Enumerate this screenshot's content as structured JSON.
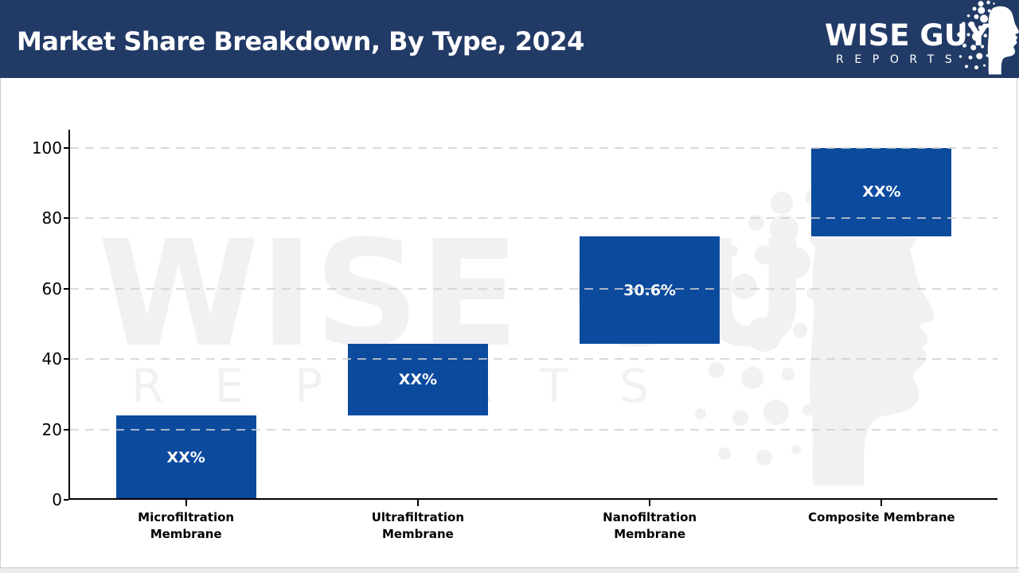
{
  "header": {
    "title": "Market Share Breakdown, By Type, 2024",
    "logo": {
      "name": "WISE GUY",
      "tagline": "REPORTS"
    }
  },
  "watermark": {
    "name": "WISE GUY",
    "tagline": "REPORTS"
  },
  "chart_data": {
    "type": "bar",
    "subtype": "floating-waterfall",
    "title": "Market Share Breakdown, By Type, 2024",
    "unit": "%",
    "categories": [
      "Microfiltration Membrane",
      "Ultrafiltration Membrane",
      "Nanofiltration Membrane",
      "Composite Membrane"
    ],
    "x_tick_label_lines": [
      [
        "Microfiltration",
        "Membrane"
      ],
      [
        "Ultrafiltration",
        "Membrane"
      ],
      [
        "Nanofiltration",
        "Membrane"
      ],
      [
        "Composite Membrane"
      ]
    ],
    "segments": [
      {
        "category": "Microfiltration Membrane",
        "start": 0,
        "end": 24,
        "value_label": "XX%"
      },
      {
        "category": "Ultrafiltration Membrane",
        "start": 24,
        "end": 44.3,
        "value_label": "XX%"
      },
      {
        "category": "Nanofiltration Membrane",
        "start": 44.3,
        "end": 74.9,
        "value_label": "30.6%"
      },
      {
        "category": "Composite Membrane",
        "start": 74.9,
        "end": 100,
        "value_label": "XX%"
      }
    ],
    "yticks": [
      0,
      20,
      40,
      60,
      80,
      100
    ],
    "ylim": [
      0,
      100
    ],
    "grid": "horizontal-dashed",
    "legend": "none",
    "colors": {
      "header_bg": "#223a66",
      "bar": "#0c4a9e",
      "grid": "#d0d0d0",
      "watermark": "#f1f1f3",
      "axis": "#000000",
      "title_text": "#ffffff"
    }
  }
}
